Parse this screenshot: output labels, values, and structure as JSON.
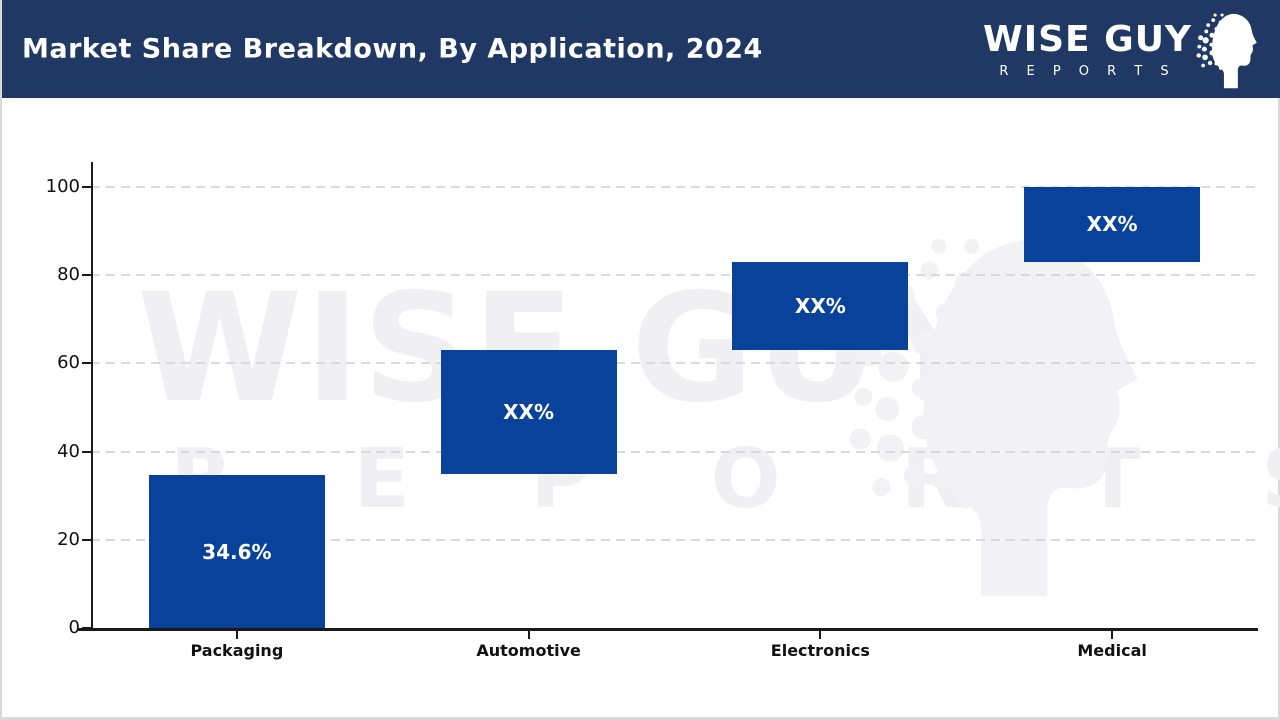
{
  "header": {
    "title": "Market Share Breakdown, By Application, 2024",
    "logo": {
      "name_line": "WISE GUY",
      "reports_line": "R E P O R T S"
    }
  },
  "watermark": {
    "name_line": "WISE GUY",
    "reports_line": "R E P O R T S"
  },
  "chart_data": {
    "type": "bar",
    "subtype": "floating-waterfall-breakdown",
    "title": "Market Share Breakdown, By Application, 2024",
    "categories": [
      "Packaging",
      "Automotive",
      "Electronics",
      "Medical"
    ],
    "segments": [
      {
        "category": "Packaging",
        "start": 0,
        "end": 34.6,
        "label": "34.6%"
      },
      {
        "category": "Automotive",
        "start": 35,
        "end": 63,
        "label": "XX%"
      },
      {
        "category": "Electronics",
        "start": 63,
        "end": 83,
        "label": "XX%"
      },
      {
        "category": "Medical",
        "start": 83,
        "end": 100,
        "label": "XX%"
      }
    ],
    "xlabel": "",
    "ylabel": "",
    "ylim": [
      0,
      100
    ],
    "yticks": [
      0,
      20,
      40,
      60,
      80,
      100
    ],
    "grid": "horizontal-dashed",
    "legend": "none",
    "colors": {
      "bar": "#08429b",
      "bar_label": "#ffffff",
      "grid": "#d9d9d9",
      "axis": "#1a1a1a",
      "header_bg": "#1f3864",
      "header_text": "#ffffff",
      "watermark": "#f0f0f2"
    }
  }
}
